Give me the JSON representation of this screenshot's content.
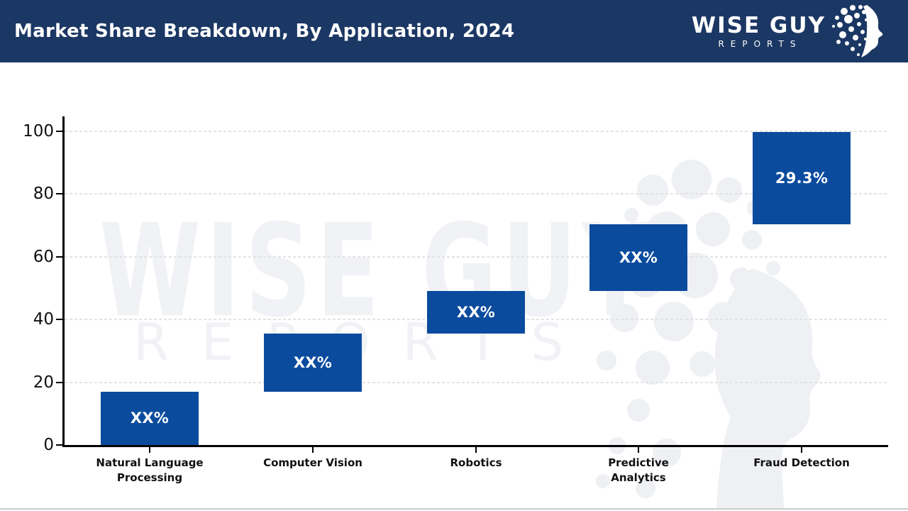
{
  "header": {
    "title": "Market Share Breakdown, By Application, 2024",
    "logo_primary": "WISE GUY",
    "logo_secondary": "REPORTS",
    "bg_color": "#1b3764"
  },
  "watermark": {
    "primary": "WISE GUY",
    "secondary": "REPORTS"
  },
  "chart_data": {
    "type": "bar",
    "variant": "floating_waterfall",
    "title": "Market Share Breakdown, By Application, 2024",
    "unit": "percent market share",
    "categories": [
      "Natural Language Processing",
      "Computer Vision",
      "Robotics",
      "Predictive Analytics",
      "Fraud Detection"
    ],
    "tick_label_lines": [
      [
        "Natural Language",
        "Processing"
      ],
      [
        "Computer Vision"
      ],
      [
        "Robotics"
      ],
      [
        "Predictive",
        "Analytics"
      ],
      [
        "Fraud Detection"
      ]
    ],
    "series": [
      {
        "name": "Market share",
        "segments": [
          {
            "category": "Natural Language Processing",
            "start": 0,
            "end": 17.0,
            "label": "XX%"
          },
          {
            "category": "Computer Vision",
            "start": 17.0,
            "end": 35.4,
            "label": "XX%"
          },
          {
            "category": "Robotics",
            "start": 35.4,
            "end": 49.0,
            "label": "XX%"
          },
          {
            "category": "Predictive Analytics",
            "start": 49.0,
            "end": 70.3,
            "label": "XX%"
          },
          {
            "category": "Fraud Detection",
            "start": 70.3,
            "end": 99.6,
            "label": "29.3%"
          }
        ]
      }
    ],
    "yticks": [
      0,
      20,
      40,
      60,
      80,
      100
    ],
    "ylim": [
      0,
      105
    ],
    "grid": {
      "style": "dashed",
      "axis": "y",
      "color": "#e2e2e2"
    },
    "legend": "none",
    "colors": {
      "bar": "#0b4b9e",
      "bar_label": "#ffffff",
      "axis": "#000000",
      "tick_label": "#111111"
    }
  }
}
